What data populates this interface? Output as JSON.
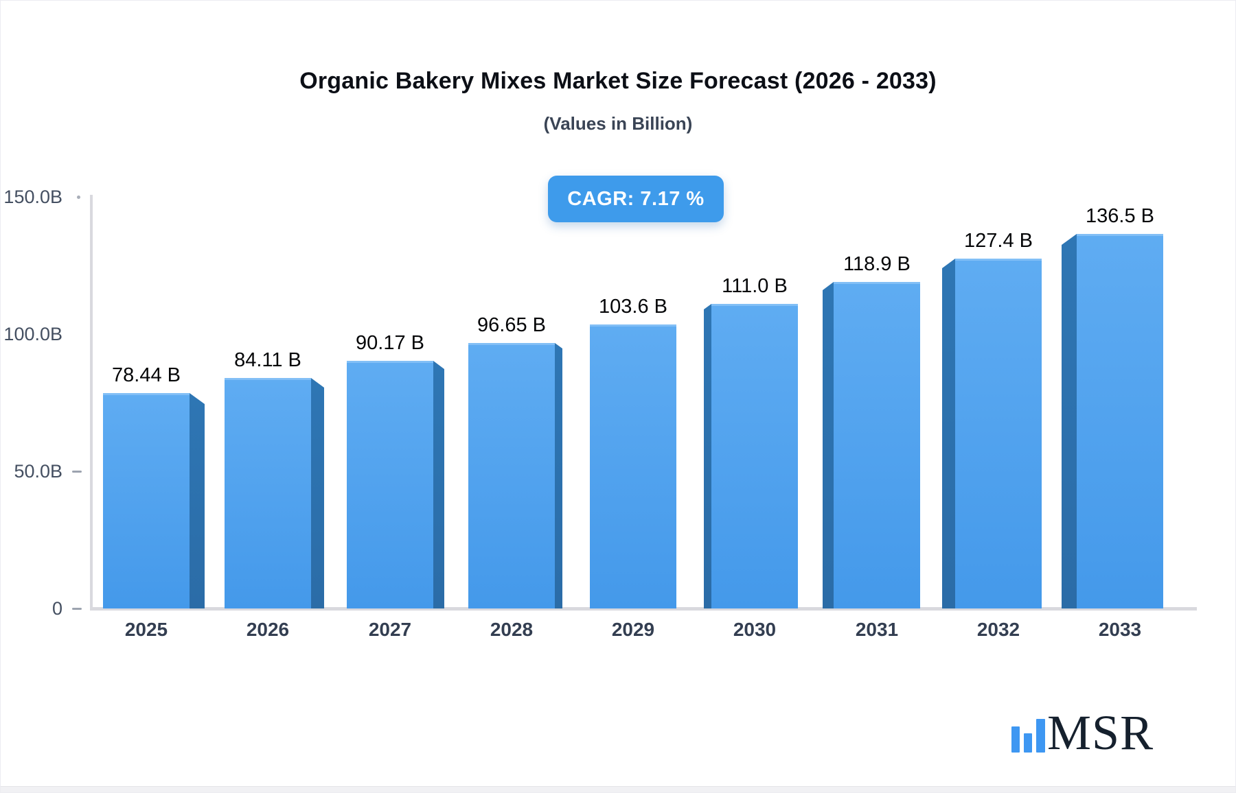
{
  "header": {
    "title": "Organic Bakery Mixes Market Size Forecast (2026 - 2033)",
    "subtitle": "(Values in Billion)",
    "cagr_badge": "CAGR: 7.17 %"
  },
  "chart_data": {
    "type": "bar",
    "title": "Organic Bakery Mixes Market Size Forecast (2026 - 2033)",
    "subtitle": "(Values in Billion)",
    "cagr_percent": 7.17,
    "categories": [
      "2025",
      "2026",
      "2027",
      "2028",
      "2029",
      "2030",
      "2031",
      "2032",
      "2033"
    ],
    "values": [
      78.44,
      84.11,
      90.17,
      96.65,
      103.6,
      111.0,
      118.9,
      127.4,
      136.5
    ],
    "value_labels": [
      "78.44 B",
      "84.11 B",
      "90.17 B",
      "96.65 B",
      "103.6 B",
      "111.0 B",
      "118.9 B",
      "127.4 B",
      "136.5 B"
    ],
    "unit": "B",
    "xlabel": "",
    "ylabel": "",
    "ylim": [
      0,
      150
    ],
    "y_ticks": [
      {
        "label": "150.0B",
        "value": 150,
        "marker": "dot"
      },
      {
        "label": "100.0B",
        "value": 100,
        "marker": "none"
      },
      {
        "label": "50.0B",
        "value": 50,
        "marker": "dash"
      },
      {
        "label": "0",
        "value": 0,
        "marker": "dash"
      }
    ],
    "grid": "off",
    "legend": "none",
    "style": "3d-perspective-bars"
  },
  "colors": {
    "bar_front_top": "#5FACF2",
    "bar_front_bottom": "#4499EA",
    "bar_top_highlight": "#82BFF6",
    "bar_side_top": "#2E76B4",
    "bar_side_bottom": "#2B6CA7",
    "badge_bg": "#3E9BEB",
    "axis_line": "#D9D9DE",
    "logo_blue": "#3E97F2",
    "logo_text_color": "#15202D"
  },
  "branding": {
    "logo_text": "MSR",
    "logo_icon": "mini-bar-chart-icon"
  }
}
